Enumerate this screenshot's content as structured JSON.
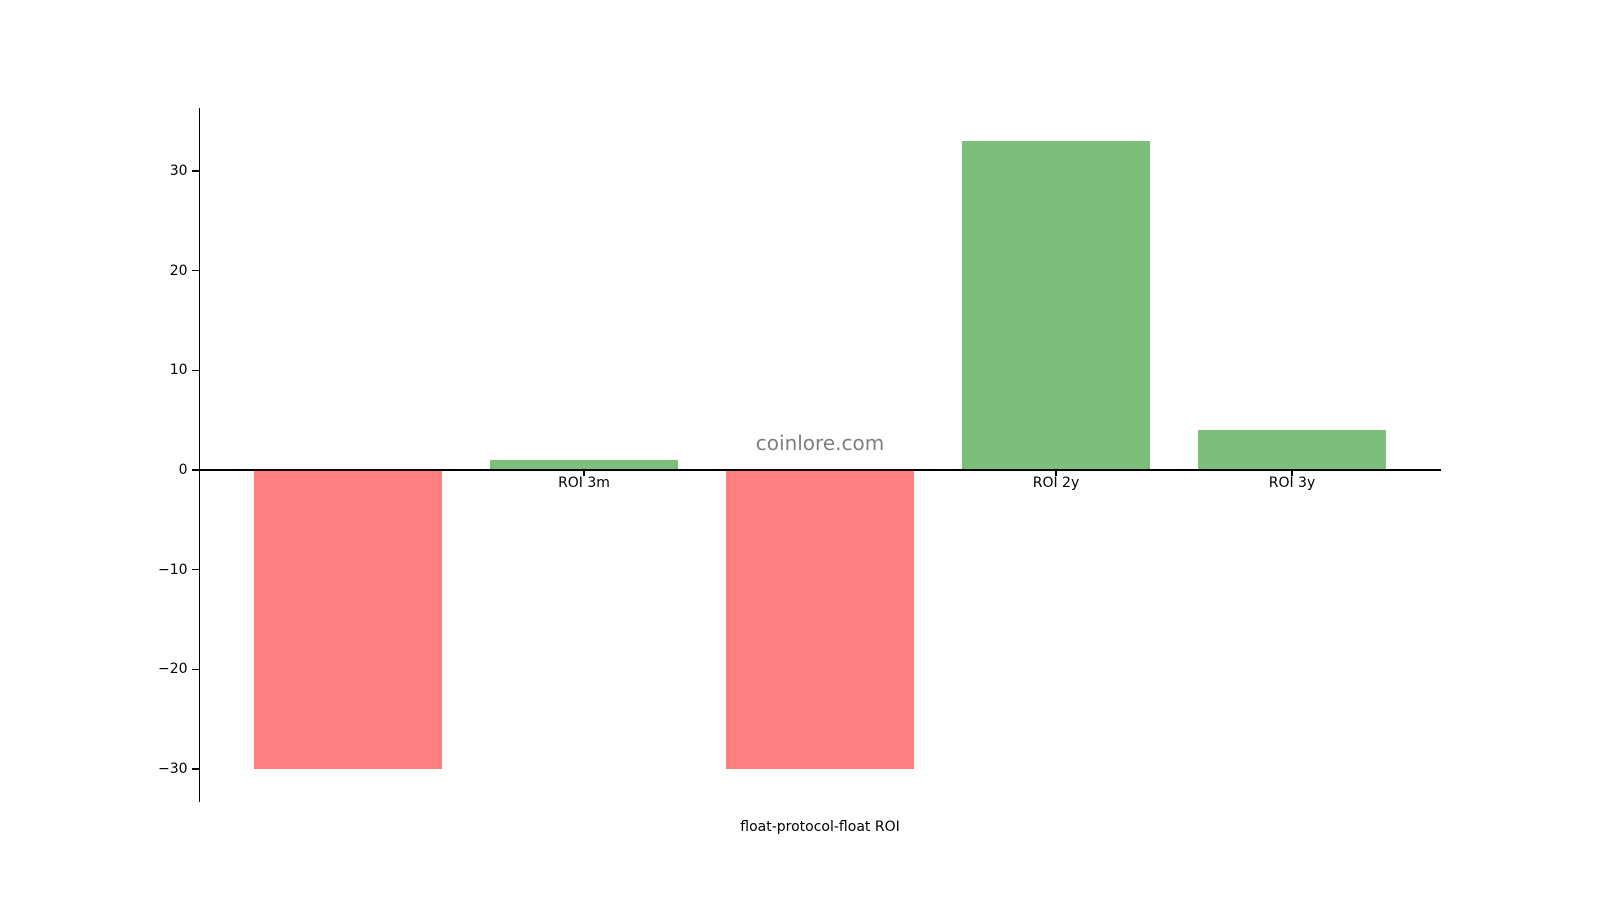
{
  "chart_data": {
    "type": "bar",
    "title": "float-protocol-float ROI",
    "watermark": "coinlore.com",
    "categories": [
      "",
      "ROI 3m",
      "",
      "ROI 2y",
      "ROI 3y"
    ],
    "values": [
      -30,
      1,
      -30,
      33,
      4
    ],
    "yticks": [
      {
        "value": 30,
        "label": "30"
      },
      {
        "value": 20,
        "label": "20"
      },
      {
        "value": 10,
        "label": "10"
      },
      {
        "value": 0,
        "label": "0"
      },
      {
        "value": -10,
        "label": "−10"
      },
      {
        "value": -20,
        "label": "−20"
      },
      {
        "value": -30,
        "label": "−30"
      }
    ],
    "ylim": [
      -33.2,
      36.2
    ],
    "xlabel": "",
    "ylabel": "",
    "grid": false,
    "legend": null,
    "colors": {
      "positive": "#7cbe7a",
      "negative": "#ff8080",
      "axis": "#000000",
      "tick_label": "#000000",
      "watermark": "#7f7f7f",
      "background": "#ffffff"
    }
  }
}
